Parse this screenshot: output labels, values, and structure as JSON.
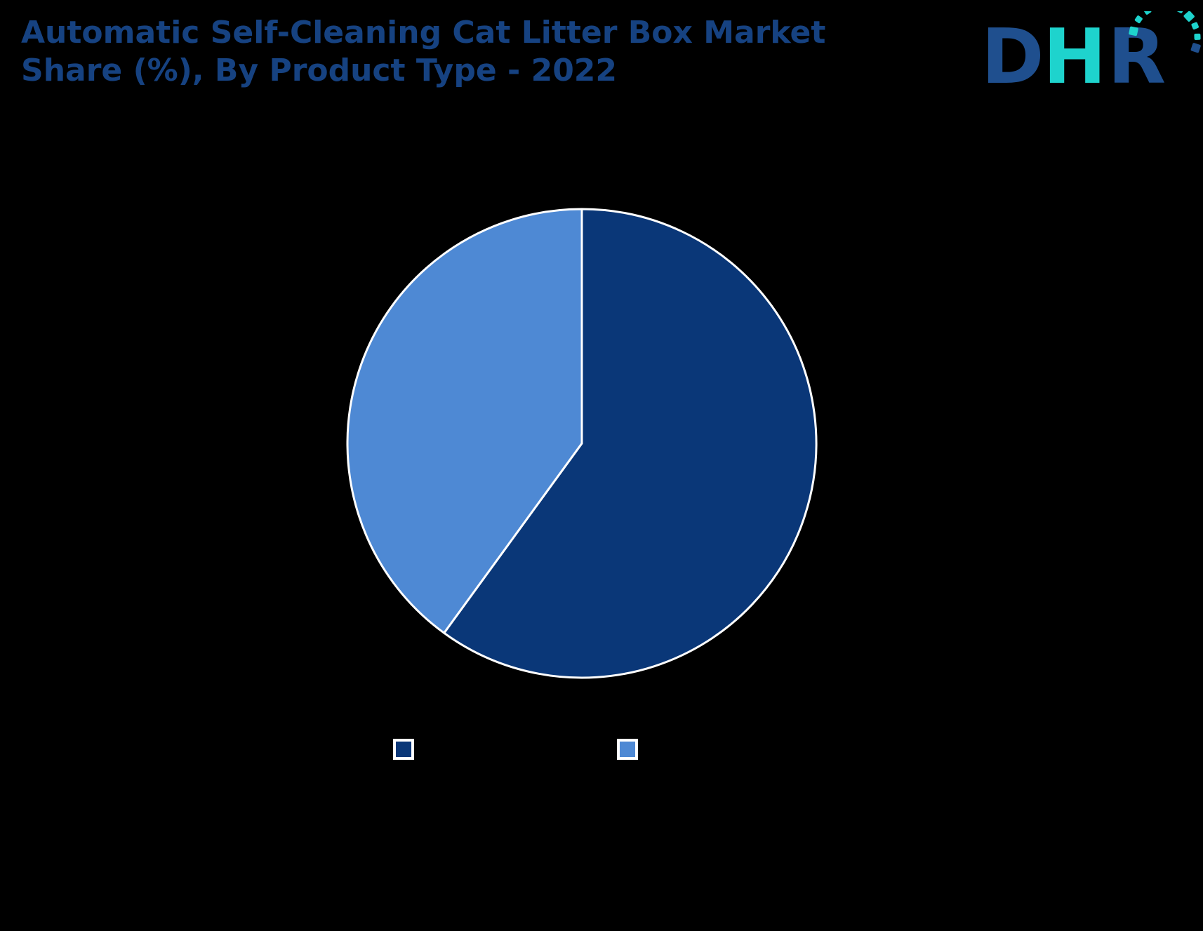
{
  "page": {
    "background_color": "#000000"
  },
  "header": {
    "title": "Automatic Self-Cleaning Cat Litter Box Market Share (%), By Product Type - 2022",
    "title_color": "#164281"
  },
  "logo": {
    "text": "DHR",
    "letters": [
      {
        "char": "D",
        "color": "#1f4f8e"
      },
      {
        "char": "H",
        "color": "#1ed3cd"
      },
      {
        "char": "R",
        "color": "#1f4f8e"
      }
    ],
    "accent_teal": "#1ed3cd",
    "accent_blue": "#1f4f8e"
  },
  "chart_data": {
    "type": "pie",
    "title": "Automatic Self-Cleaning Cat Litter Box Market Share (%), By Product Type - 2022",
    "segments": [
      {
        "label": "",
        "value": 60,
        "color": "#0a3778"
      },
      {
        "label": "",
        "value": 40,
        "color": "#4e89d4"
      }
    ],
    "start_angle_deg": 0,
    "direction": "clockwise",
    "slice_border_color": "#ffffff",
    "slice_border_width": 3,
    "legend_position": "bottom",
    "legend_labels_visible": false,
    "legend_swatch_border_color": "#ffffff"
  }
}
